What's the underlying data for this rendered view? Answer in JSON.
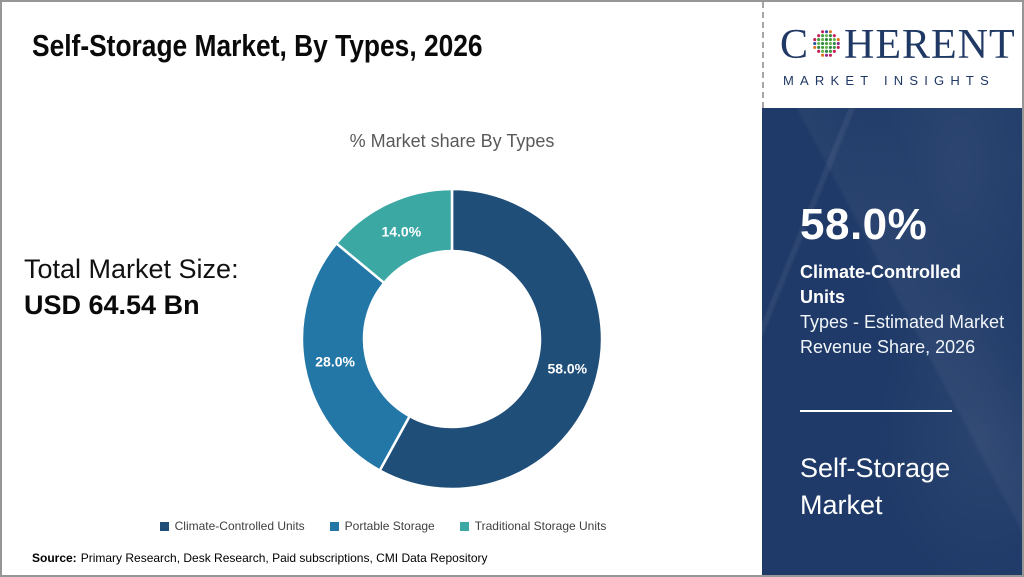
{
  "header": {
    "title": "Self-Storage Market, By Types, 2026"
  },
  "logo": {
    "brand_prefix": "C",
    "brand_suffix": "HERENT",
    "tagline": "MARKET INSIGHTS",
    "brand_color": "#1F3864",
    "globe": {
      "inner_colors": [
        "#3f9c3a",
        "#66b44e",
        "#2e8540"
      ],
      "edge_colors": [
        "#c81e5b",
        "#2b4fa0",
        "#e0731f",
        "#8a2a8f"
      ]
    }
  },
  "left_panel": {
    "total_label": "Total Market Size:",
    "total_value": "USD 64.54 Bn"
  },
  "chart_data": {
    "type": "pie",
    "variant": "donut",
    "title": "% Market share By Types",
    "start_angle_deg": 0,
    "direction": "clockwise",
    "legend_position": "bottom",
    "series": [
      {
        "label": "Climate-Controlled Units",
        "value": 58.0,
        "display": "58.0%",
        "color": "#1F4E79"
      },
      {
        "label": "Portable Storage",
        "value": 28.0,
        "display": "28.0%",
        "color": "#2277A7"
      },
      {
        "label": "Traditional Storage Units",
        "value": 14.0,
        "display": "14.0%",
        "color": "#3CA8A4"
      }
    ]
  },
  "sidebar": {
    "background": "#1F3A68",
    "stat_value": "58.0%",
    "stat_name": "Climate-Controlled Units",
    "stat_desc": "Types - Estimated Market Revenue Share, 2026",
    "footer_title": "Self-Storage Market"
  },
  "source": {
    "prefix": "Source:",
    "text": "Primary Research, Desk Research, Paid subscriptions, CMI Data Repository"
  }
}
